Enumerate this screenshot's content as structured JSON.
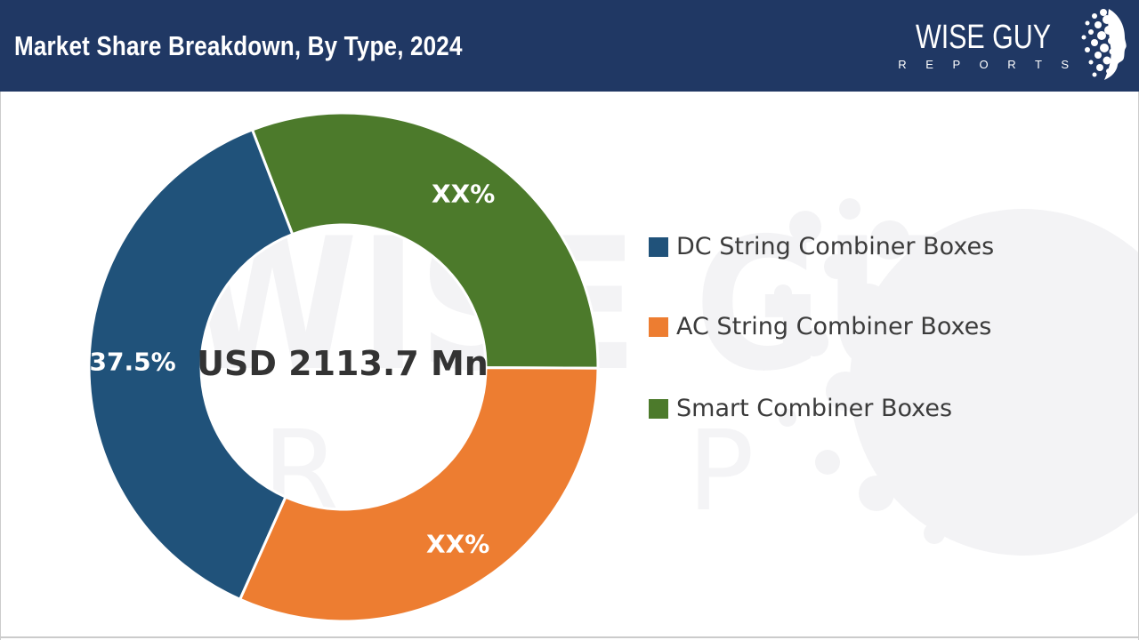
{
  "header": {
    "title": "Market Share Breakdown, By Type, 2024",
    "bg_color": "#203864",
    "logo": {
      "line1": "WISE GUY",
      "line2": "R E P O R T S"
    }
  },
  "watermark": {
    "line1": "WISE GUY",
    "line2": "R E P O R T S"
  },
  "chart_data": {
    "type": "pie",
    "subtype": "donut",
    "title": "Market Share Breakdown, By Type, 2024",
    "center_label": "USD 2113.7 Mn",
    "start_angle_deg_clockwise_from_top": -21,
    "legend_position": "right",
    "segments": [
      {
        "name": "Smart Combiner Boxes",
        "display_label": "XX%",
        "share_pct_est": 30.9,
        "color": "#4C7A2B"
      },
      {
        "name": "AC String Combiner Boxes",
        "display_label": "XX%",
        "share_pct_est": 31.6,
        "color": "#ED7D31"
      },
      {
        "name": "DC String Combiner Boxes",
        "display_label": "37.5%",
        "share_pct_est": 37.5,
        "color": "#20527A"
      }
    ]
  },
  "legend": {
    "items": [
      {
        "label": "DC String Combiner Boxes",
        "color": "#20527A"
      },
      {
        "label": "AC String Combiner Boxes",
        "color": "#ED7D31"
      },
      {
        "label": "Smart Combiner Boxes",
        "color": "#4C7A2B"
      }
    ]
  }
}
